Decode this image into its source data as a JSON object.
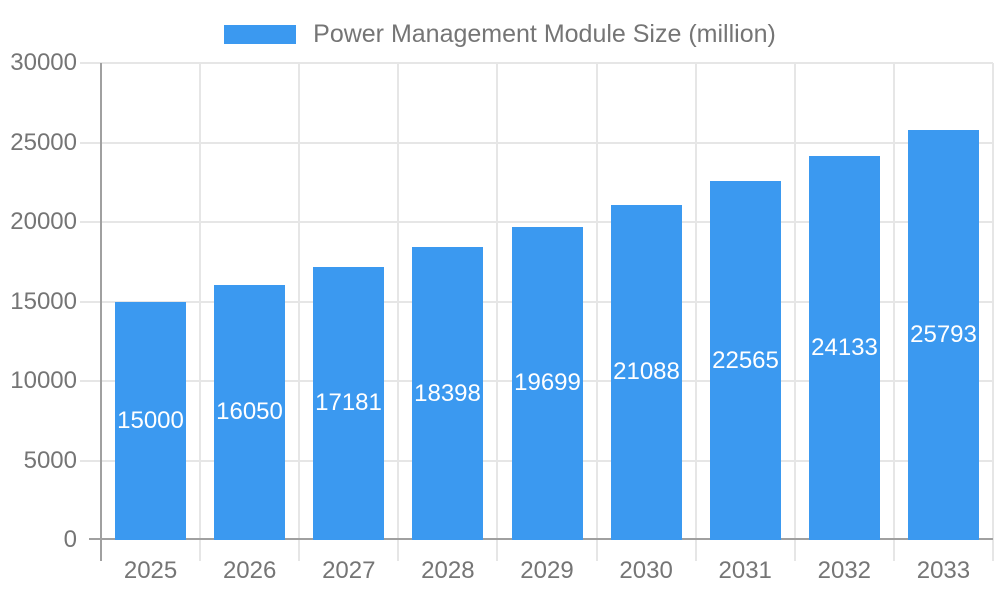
{
  "legend": {
    "label": "Power Management Module Size (million)"
  },
  "chart_data": {
    "type": "bar",
    "title": "Power Management Module Size (million)",
    "categories": [
      "2025",
      "2026",
      "2027",
      "2028",
      "2029",
      "2030",
      "2031",
      "2032",
      "2033"
    ],
    "series": [
      {
        "name": "Power Management Module Size (million)",
        "values": [
          15000,
          16050,
          17181,
          18398,
          19699,
          21088,
          22565,
          24133,
          25793
        ]
      }
    ],
    "bar_value_labels": [
      "15000",
      "16050",
      "17181",
      "18398",
      "19699",
      "21088",
      "22565",
      "24133",
      "25793"
    ],
    "xlabel": "",
    "ylabel": "",
    "ylim": [
      0,
      30000
    ],
    "ytick_interval": 5000,
    "ytick_labels": [
      "0",
      "5000",
      "10000",
      "15000",
      "20000",
      "25000",
      "30000"
    ],
    "legend_position": "top",
    "grid": true,
    "bar_labels_position": "center-inside"
  },
  "colors": {
    "bar": "#3B99F0",
    "grid": "#E6E6E6",
    "axis": "#A0A0A0",
    "tick_text": "#757575",
    "bar_label_text": "#FFFFFF",
    "background": "#FFFFFF"
  }
}
